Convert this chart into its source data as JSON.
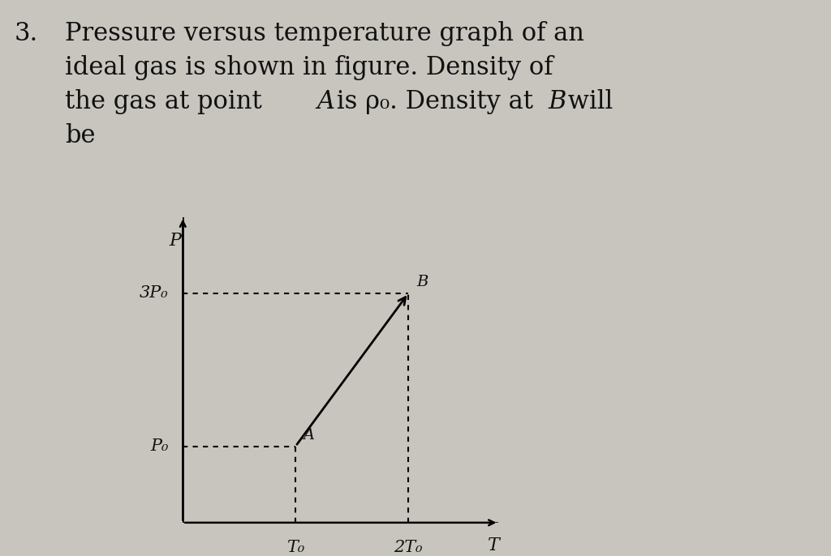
{
  "background_color": "#c8c5be",
  "text_color": "#111111",
  "question_number": "3.",
  "line1": "Pressure versus temperature graph of an",
  "line2": "ideal gas is shown in figure. Density of",
  "line3a": "the gas at point ",
  "line3_A": "A",
  "line3b": " is ρ₀. Density at ",
  "line3_B": "B",
  "line3c": " will",
  "line4": "be",
  "point_A": [
    1.0,
    1.0
  ],
  "point_B": [
    2.0,
    3.0
  ],
  "xlabel": "T",
  "ylabel": "P",
  "label_T0": "T₀",
  "label_2T0": "2T₀",
  "label_P0": "P₀",
  "label_3P0": "3P₀",
  "label_A": "A",
  "label_B": "B",
  "xlim": [
    0,
    2.8
  ],
  "ylim": [
    0,
    4.0
  ],
  "figsize": [
    10.24,
    6.86
  ],
  "dpi": 100
}
